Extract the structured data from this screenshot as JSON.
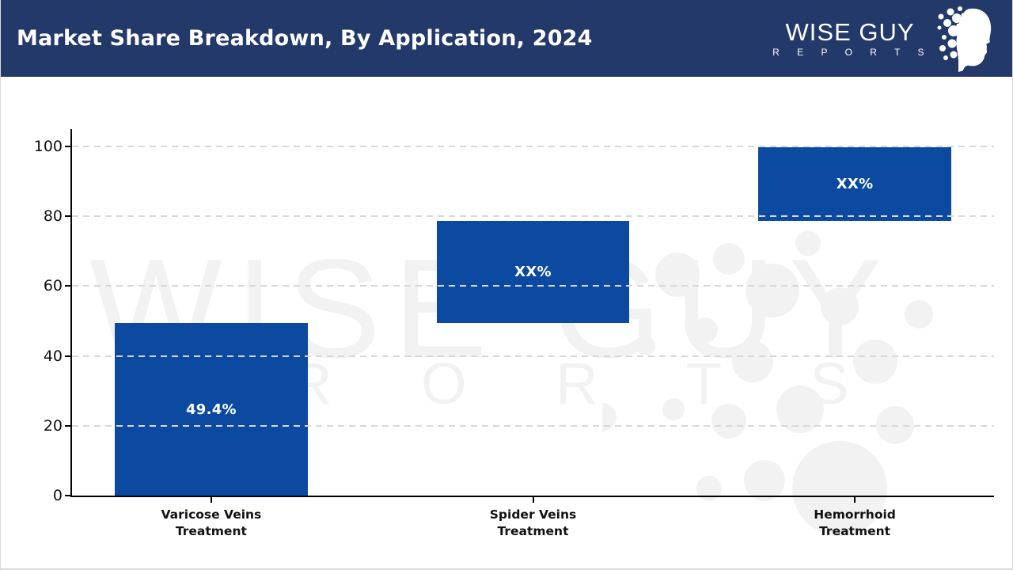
{
  "header": {
    "title": "Market Share Breakdown, By Application, 2024",
    "logo": {
      "primary": "WISE GUY",
      "secondary": "R E P O R T S"
    }
  },
  "watermark": {
    "line1": "WISE GUY",
    "line2": "R O R T S"
  },
  "chart_data": {
    "type": "bar",
    "subtype": "waterfall",
    "title": "Market Share Breakdown, By Application, 2024",
    "categories": [
      "Varicose Veins Treatment",
      "Spider Veins Treatment",
      "Hemorrhoid Treatment"
    ],
    "category_lines": [
      [
        "Varicose Veins",
        "Treatment"
      ],
      [
        "Spider Veins",
        "Treatment"
      ],
      [
        "Hemorrhoid",
        "Treatment"
      ]
    ],
    "segments": [
      {
        "label": "49.4%",
        "start": 0,
        "end": 49.4
      },
      {
        "label": "XX%",
        "start": 49.4,
        "end": 78.8
      },
      {
        "label": "XX%",
        "start": 78.8,
        "end": 99.8
      }
    ],
    "ylim": [
      0,
      100
    ],
    "yticks": [
      0,
      20,
      40,
      60,
      80,
      100
    ],
    "grid": "horizontal-dashed",
    "legend": "none",
    "colors": {
      "bar": "#0b4aa0",
      "header_bg": "#22396a",
      "grid": "#d8d8d8",
      "watermark": "#f2f2f2",
      "bar_label": "#ffffff",
      "axis": "#000000"
    }
  }
}
